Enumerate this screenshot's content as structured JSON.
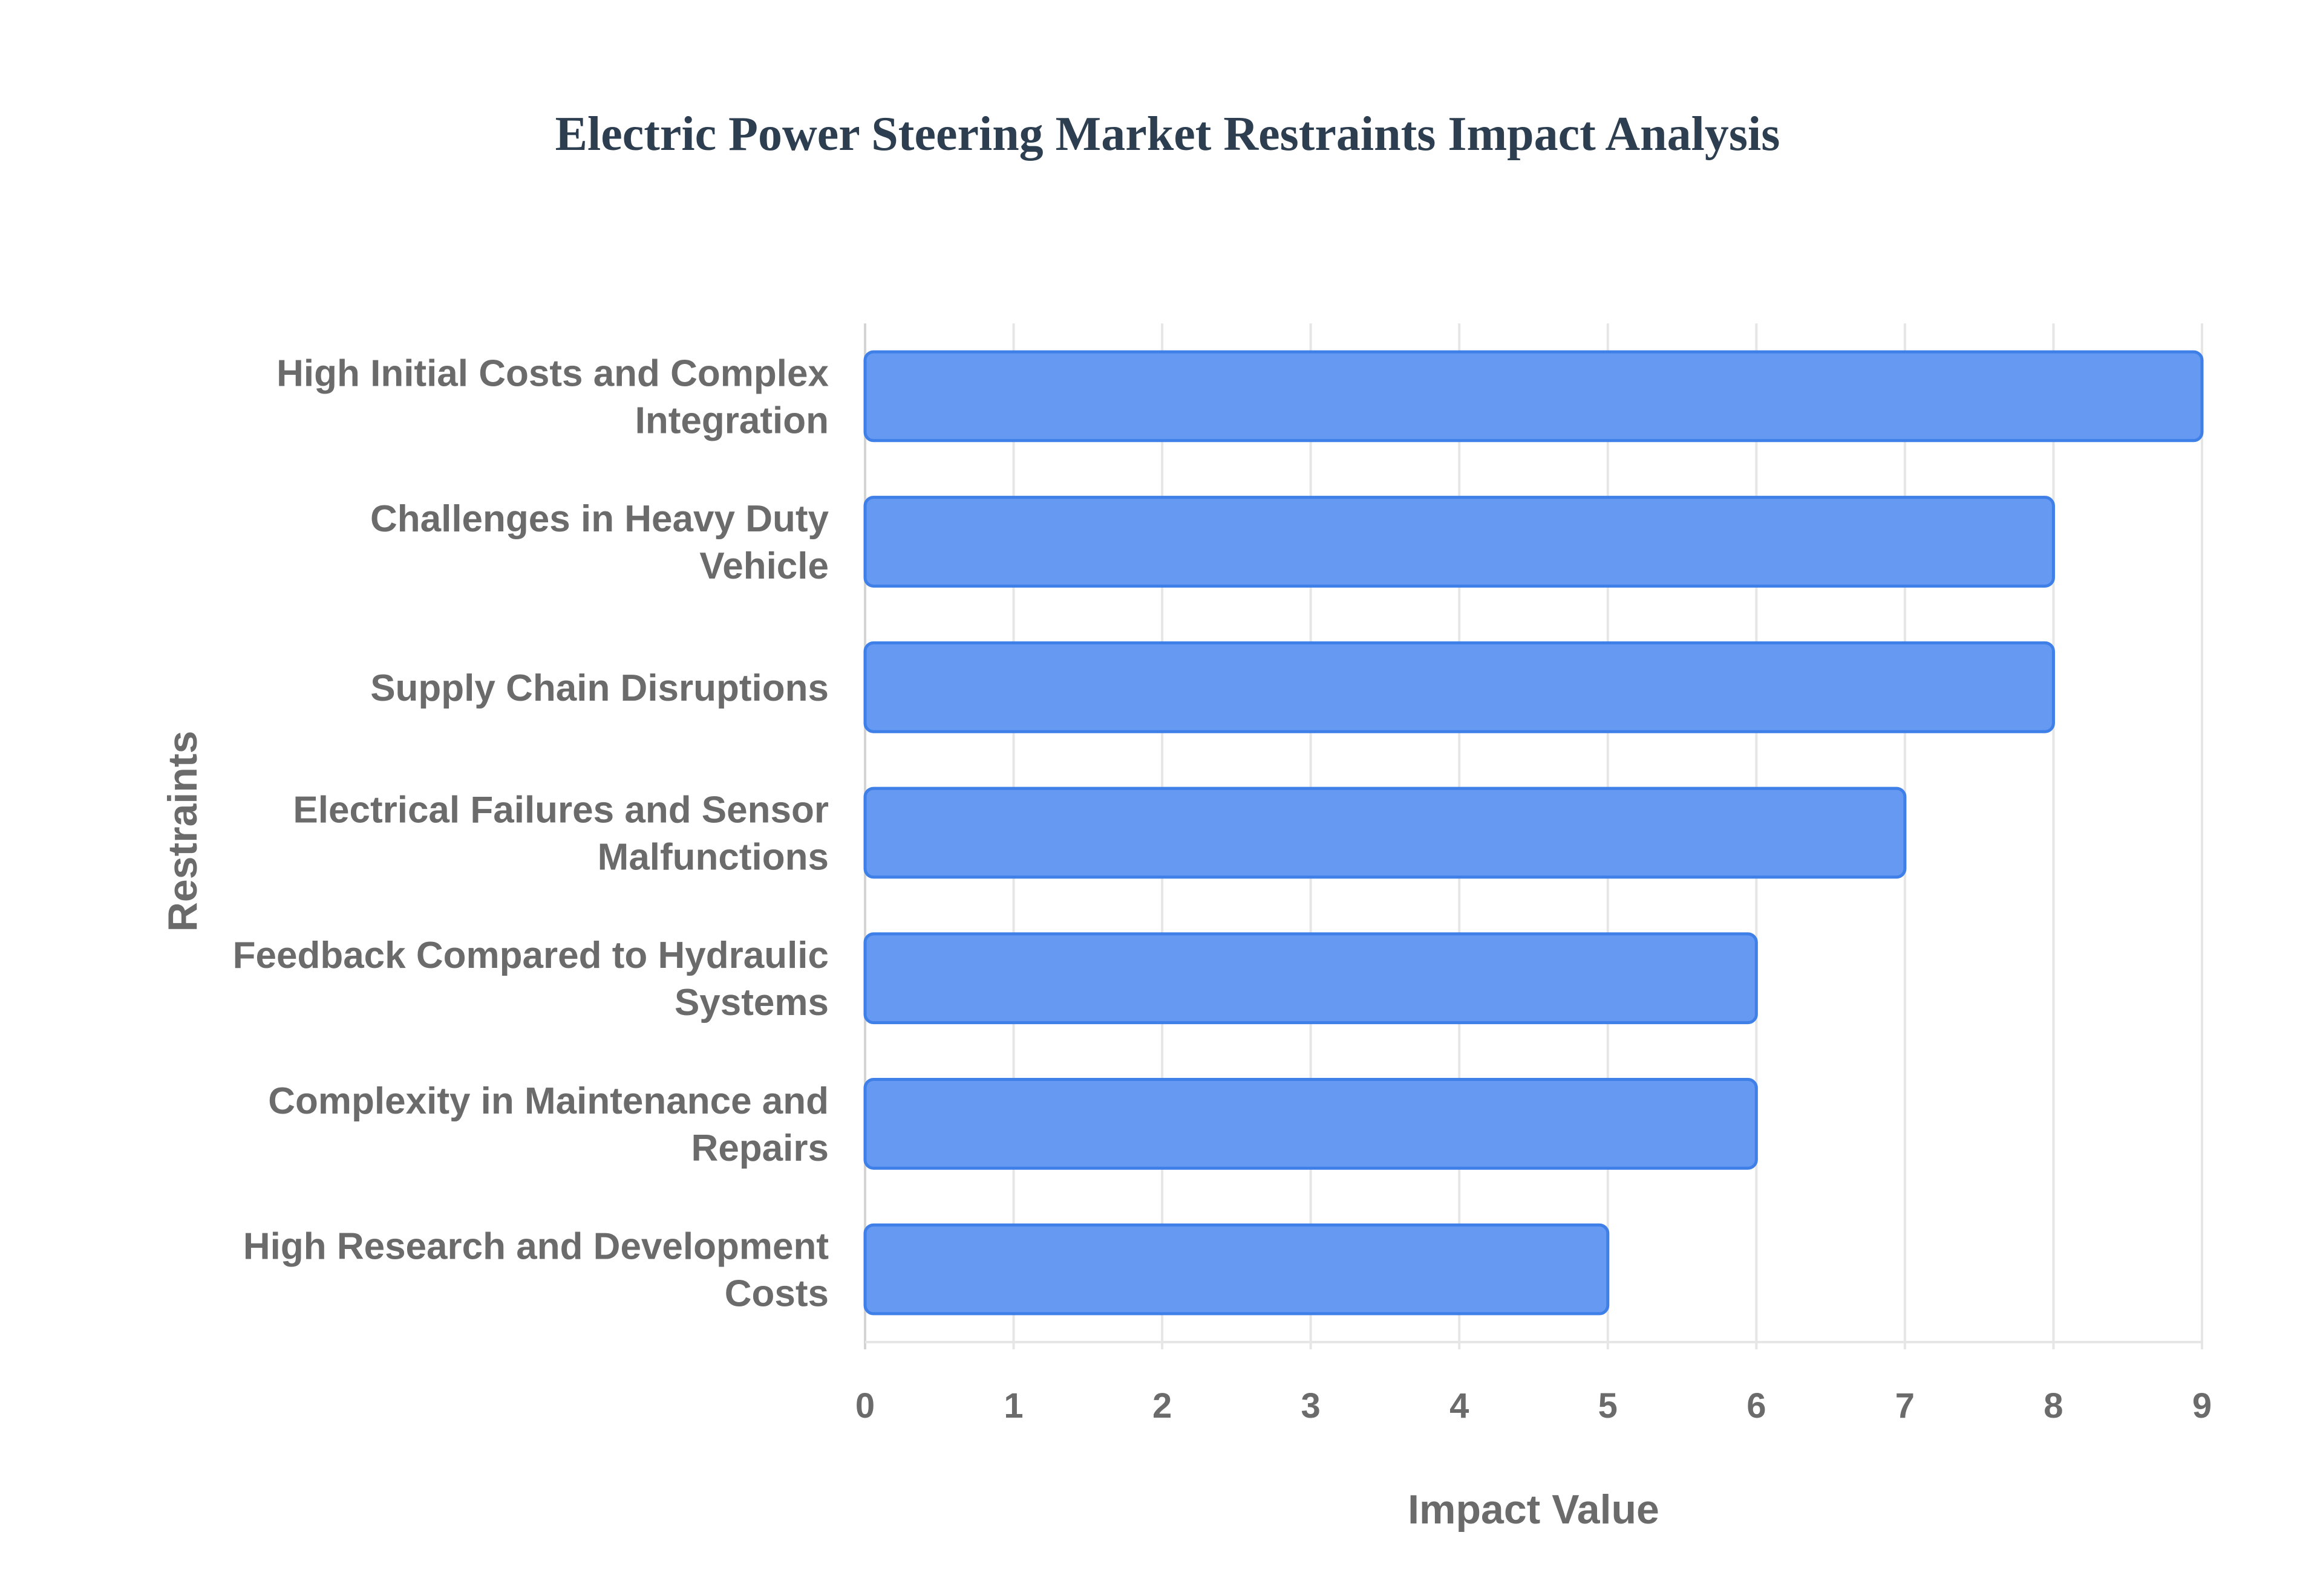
{
  "chart_data": {
    "type": "bar",
    "orientation": "horizontal",
    "title": "Electric Power Steering Market Restraints Impact Analysis",
    "xlabel": "Impact Value",
    "ylabel": "Restraints",
    "xlim": [
      0,
      9
    ],
    "xticks": [
      0,
      1,
      2,
      3,
      4,
      5,
      6,
      7,
      8,
      9
    ],
    "grid": true,
    "legend": "none",
    "bar_color": "#6699f2",
    "bar_edge_color": "#3f7fe8",
    "categories": [
      [
        "High Initial Costs and Complex",
        "Integration"
      ],
      [
        "Challenges in Heavy Duty",
        "Vehicle"
      ],
      [
        "Supply Chain Disruptions"
      ],
      [
        "Electrical Failures and Sensor",
        "Malfunctions"
      ],
      [
        "Feedback Compared to Hydraulic",
        "Systems"
      ],
      [
        "Complexity in Maintenance and",
        "Repairs"
      ],
      [
        "High Research and Development",
        "Costs"
      ]
    ],
    "values": [
      9,
      8,
      8,
      7,
      6,
      6,
      5
    ]
  }
}
